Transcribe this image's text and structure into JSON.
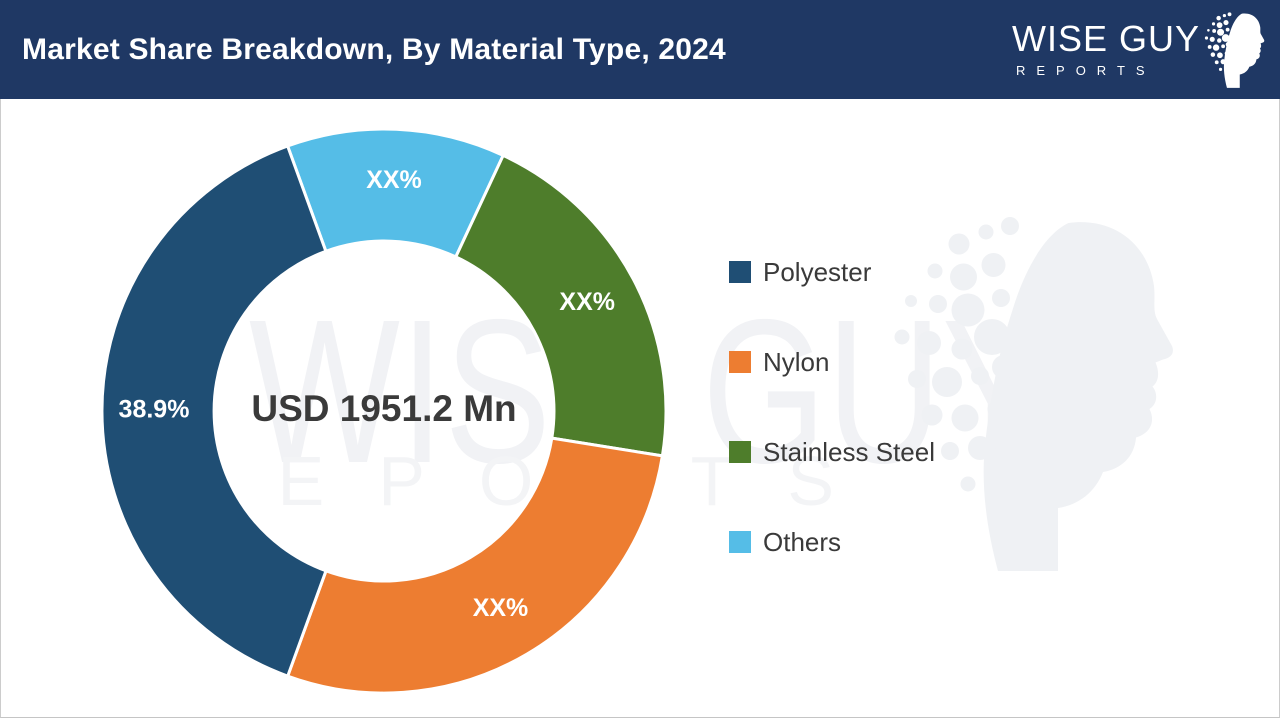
{
  "header": {
    "title": "Market Share Breakdown, By Material Type, 2024",
    "logo": {
      "name": "WISE GUY",
      "subtitle": "REPORTS"
    }
  },
  "watermark": {
    "brand": "WISE GUY",
    "subtitle": "REPORTS"
  },
  "chart_data": {
    "type": "pie",
    "subtype": "donut",
    "title": "Market Share Breakdown, By Material Type, 2024",
    "center_label": "USD 1951.2 Mn",
    "legend_position": "right",
    "start_angle_deg": 340,
    "clockwise_draw_indices": [
      3,
      2,
      1,
      0
    ],
    "series": [
      {
        "name": "Polyester",
        "value": 38.9,
        "label": "38.9%",
        "color": "#1F4E74"
      },
      {
        "name": "Nylon",
        "value": 28.0,
        "label": "XX%",
        "color": "#ED7D31"
      },
      {
        "name": "Stainless Steel",
        "value": 20.6,
        "label": "XX%",
        "color": "#4E7D2B"
      },
      {
        "name": "Others",
        "value": 12.5,
        "label": "XX%",
        "color": "#55BDE7"
      }
    ]
  },
  "colors": {
    "header_bg": "#1F3864",
    "center_text": "#3A3A3A",
    "watermark": "#F1F2F5"
  }
}
